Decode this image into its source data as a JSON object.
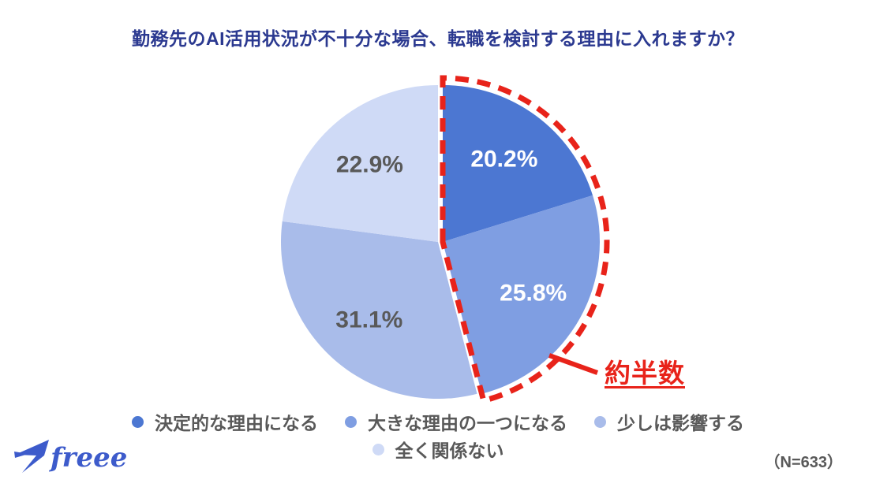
{
  "title": "勤務先のAI活用状況が不十分な場合、転職を検討する理由に入れますか？",
  "chart_data": {
    "type": "pie",
    "title": "勤務先のAI活用状況が不十分な場合、転職を検討する理由に入れますか？",
    "labels": [
      "決定的な理由になる",
      "大きな理由の一つになる",
      "少しは影響する",
      "全く関係ない"
    ],
    "values": [
      20.2,
      25.8,
      31.1,
      22.9
    ],
    "value_labels": [
      "20.2%",
      "25.8%",
      "31.1%",
      "22.9%"
    ],
    "slice_colors": [
      "#4C77D2",
      "#7F9EE2",
      "#A9BCEA",
      "#CFDAF6"
    ],
    "value_label_colors": [
      "#ffffff",
      "#ffffff",
      "#595959",
      "#595959"
    ],
    "start_angle_deg": 0,
    "direction": "clockwise",
    "legend_position": "bottom",
    "highlight": {
      "slices": [
        0,
        1
      ],
      "total_percent": 46.0,
      "label": "約半数",
      "color": "#E8231A",
      "style": "red-dashed-outline"
    }
  },
  "colors": {
    "title": "#2B3990",
    "legend_text": "#595959",
    "sample_text": "#595959",
    "logo_blue": "#3D5BCB"
  },
  "footer": {
    "sample_size": "（N=633）",
    "logo_text": "freee"
  }
}
